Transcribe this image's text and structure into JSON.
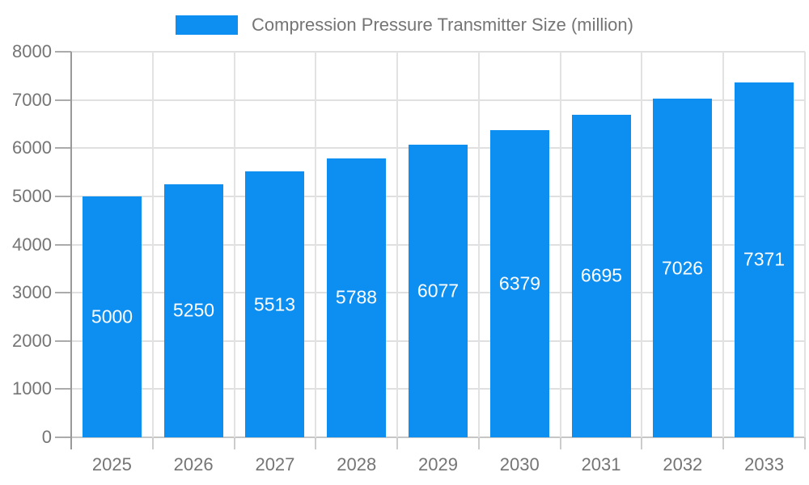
{
  "chart_data": {
    "type": "bar",
    "title": "Compression Pressure Transmitter Size (million)",
    "legend": {
      "label": "Compression Pressure Transmitter Size (million)",
      "position": "top-center"
    },
    "categories": [
      "2025",
      "2026",
      "2027",
      "2028",
      "2029",
      "2030",
      "2031",
      "2032",
      "2033"
    ],
    "values": [
      5000,
      5250,
      5513,
      5788,
      6077,
      6379,
      6695,
      7026,
      7371
    ],
    "xlabel": "",
    "ylabel": "",
    "ylim": [
      0,
      8000
    ],
    "ytick_step": 1000,
    "yticks": [
      0,
      1000,
      2000,
      3000,
      4000,
      5000,
      6000,
      7000,
      8000
    ],
    "grid": true,
    "colors": {
      "bar": "#0d8ff2",
      "bar_value_text": "#ffffff",
      "axis_text": "#757575",
      "legend_text": "#757575",
      "grid_h": "#e0e0e0",
      "grid_v": "#e2e2e2",
      "baseline": "#c6c6c6",
      "y_axis_line": "#999999"
    }
  }
}
